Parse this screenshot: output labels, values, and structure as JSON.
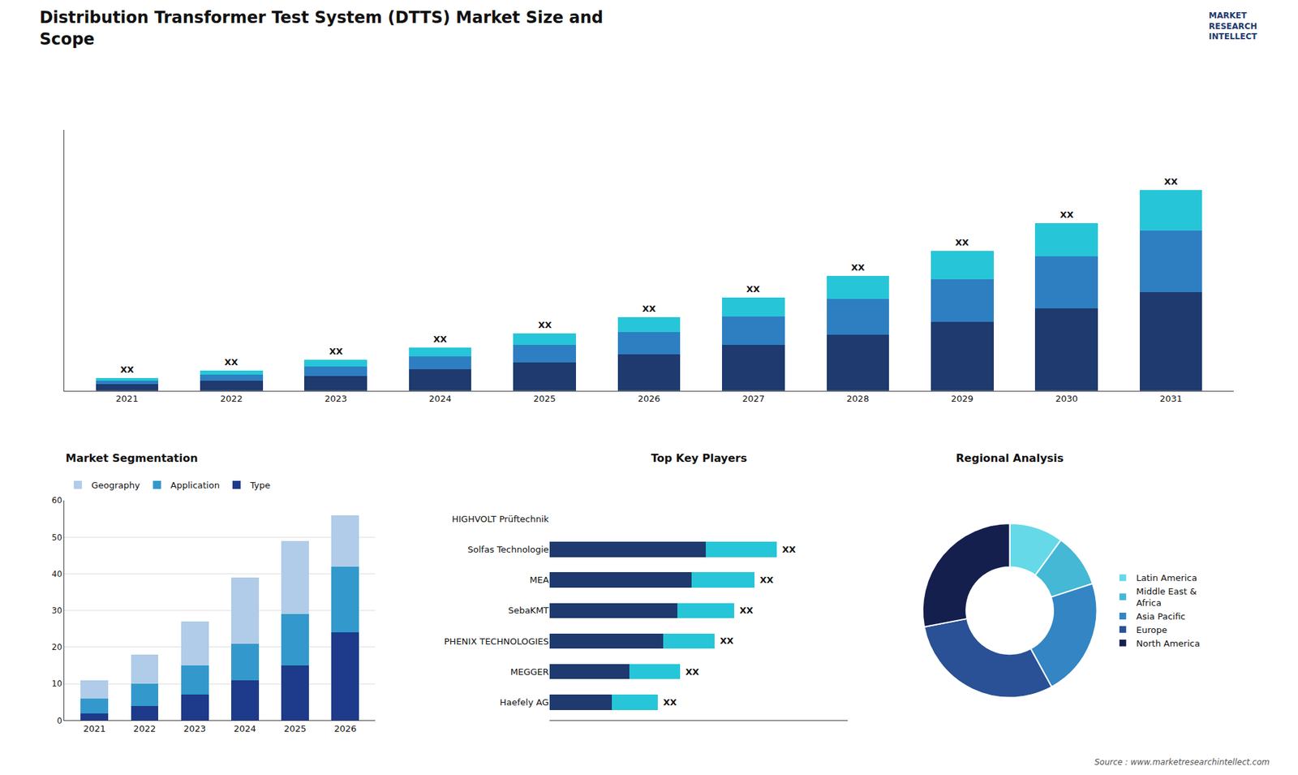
{
  "title": "Distribution Transformer Test System (DTTS) Market Size and\nScope",
  "annotations": [
    "MARKET\nRESEARCH\nINTELLECT",
    "Source : www.marketresearchintellect.com"
  ],
  "chart_data": [
    {
      "type": "bar",
      "stacked": true,
      "categories": [
        "2021",
        "2022",
        "2023",
        "2024",
        "2025",
        "2026",
        "2027",
        "2028",
        "2029",
        "2030",
        "2031"
      ],
      "series": [
        {
          "color": "#1e3a6e",
          "values": [
            1.0,
            1.6,
            2.4,
            3.4,
            4.5,
            5.8,
            7.3,
            9.0,
            11.0,
            13.2,
            15.8
          ]
        },
        {
          "color": "#2d7fc1",
          "values": [
            0.6,
            1.0,
            1.5,
            2.1,
            2.8,
            3.6,
            4.6,
            5.7,
            6.9,
            8.3,
            9.9
          ]
        },
        {
          "color": "#26c6d8",
          "values": [
            0.4,
            0.6,
            1.0,
            1.4,
            1.9,
            2.4,
            3.0,
            3.7,
            4.5,
            5.4,
            6.5
          ]
        }
      ],
      "ylim": [
        0,
        41.86
      ],
      "tick_labels": "x",
      "annotations": [
        {
          "text": "XX",
          "category": "2021"
        },
        {
          "text": "XX",
          "category": "2022"
        },
        {
          "text": "XX",
          "category": "2023"
        },
        {
          "text": "XX",
          "category": "2024"
        },
        {
          "text": "XX",
          "category": "2025"
        },
        {
          "text": "XX",
          "category": "2026"
        },
        {
          "text": "XX",
          "category": "2027"
        },
        {
          "text": "XX",
          "category": "2028"
        },
        {
          "text": "XX",
          "category": "2029"
        },
        {
          "text": "XX",
          "category": "2030"
        },
        {
          "text": "XX",
          "category": "2031"
        }
      ]
    },
    {
      "type": "bar",
      "title": "Market Segmentation",
      "stacked": true,
      "categories": [
        "2021",
        "2022",
        "2023",
        "2024",
        "2025",
        "2026"
      ],
      "series": [
        {
          "name": "Type",
          "color": "#1e3a8a",
          "values": [
            2,
            4,
            7,
            11,
            15,
            24
          ]
        },
        {
          "name": "Application",
          "color": "#3399cc",
          "values": [
            4,
            6,
            8,
            10,
            14,
            18
          ]
        },
        {
          "name": "Geography",
          "color": "#b0cce8",
          "values": [
            5,
            8,
            12,
            18,
            20,
            14
          ]
        }
      ],
      "ylim": [
        0,
        60
      ],
      "yticks": [
        0,
        10,
        20,
        30,
        40,
        50,
        60
      ],
      "grid": true,
      "legend": "top"
    },
    {
      "type": "bar",
      "title": "Top Key Players",
      "orientation": "horizontal",
      "stacked": true,
      "categories": [
        "HIGHVOLT Prüftechnik",
        "Solfas Technologie",
        "MEA",
        "SebaKMT",
        "PHENIX TECHNOLOGIES",
        "MEGGER",
        "Haefely AG"
      ],
      "series": [
        {
          "color": "#1e3a6e",
          "values": [
            0,
            55,
            50,
            45,
            40,
            28,
            22
          ]
        },
        {
          "color": "#26c6d8",
          "values": [
            0,
            25,
            22,
            20,
            18,
            18,
            16
          ]
        }
      ],
      "xlim": [
        0,
        105
      ],
      "tick_labels": "y",
      "annotations": [
        {
          "text": "XX",
          "category": "Solfas Technologie"
        },
        {
          "text": "XX",
          "category": "MEA"
        },
        {
          "text": "XX",
          "category": "SebaKMT"
        },
        {
          "text": "XX",
          "category": "PHENIX TECHNOLOGIES"
        },
        {
          "text": "XX",
          "category": "MEGGER"
        },
        {
          "text": "XX",
          "category": "Haefely AG"
        }
      ]
    },
    {
      "type": "pie",
      "title": "Regional Analysis",
      "categories": [
        "Latin America",
        "Middle East &\nAfrica",
        "Asia Pacific",
        "Europe",
        "North America"
      ],
      "values": [
        0.1,
        0.1,
        0.22,
        0.3,
        0.28
      ],
      "colors": [
        "#66d9e8",
        "#44b8d4",
        "#3385c4",
        "#2a5096",
        "#151f4e"
      ],
      "legend": "right"
    }
  ]
}
